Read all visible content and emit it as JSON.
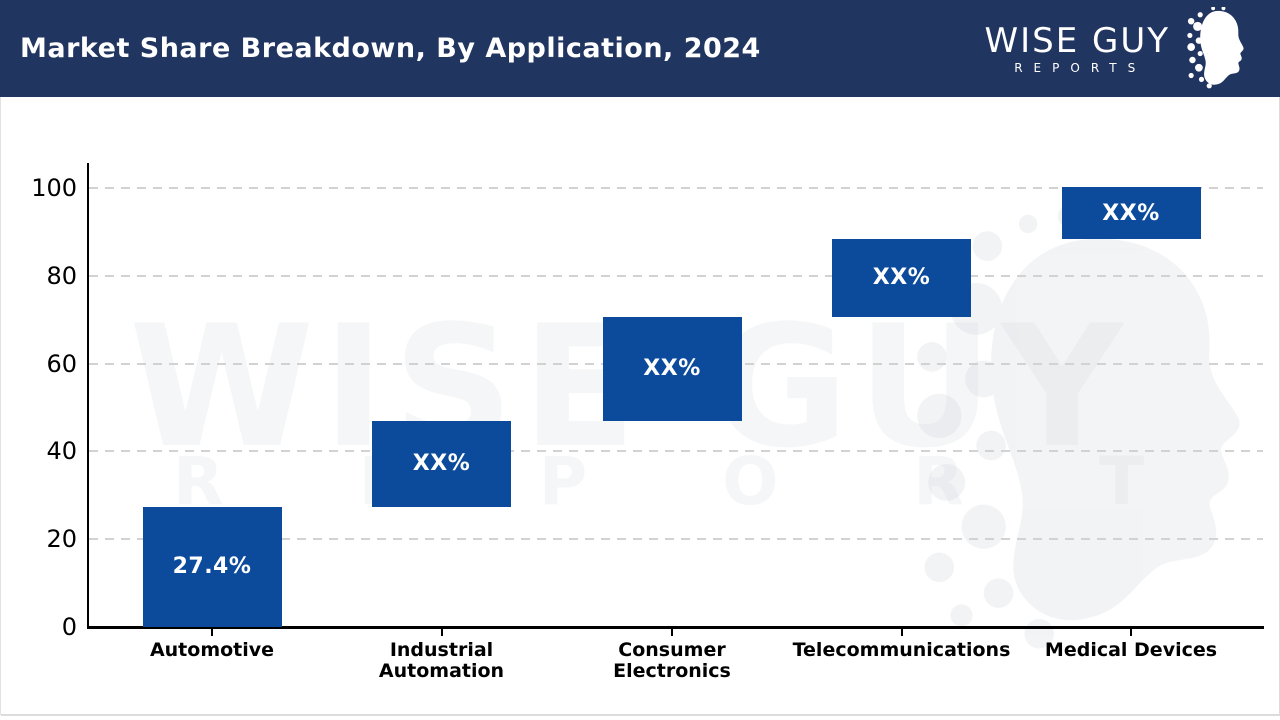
{
  "header": {
    "title": "Market Share Breakdown, By Application, 2024",
    "bg_color": "#213561",
    "logo": {
      "line1": "WISE GUY",
      "line2": "REPORTS",
      "head_icon": "dotted-face-profile"
    }
  },
  "watermark": {
    "line1": "WISE GUY",
    "line2": "R E P O R T S",
    "head_icon": "dotted-face-profile"
  },
  "chart_data": {
    "type": "bar",
    "subtype": "waterfall",
    "title": "Market Share Breakdown, By Application, 2024",
    "xlabel": "",
    "ylabel": "",
    "ylim": [
      0,
      105
    ],
    "yticks": [
      0,
      20,
      40,
      60,
      80,
      100
    ],
    "grid": "horizontal-dashed",
    "legend": "none",
    "bar_color": "#0c4a9c",
    "bar_label_color": "#ffffff",
    "categories": [
      "Automotive",
      "Industrial Automation",
      "Consumer Electronics",
      "Telecommunications",
      "Medical Devices"
    ],
    "category_label_lines": [
      "Automotive",
      "Industrial\nAutomation",
      "Consumer\nElectronics",
      "Telecommunications",
      "Medical Devices"
    ],
    "segments": [
      {
        "category": "Automotive",
        "start": 0,
        "end": 27.4,
        "value": 27.4,
        "label": "27.4%"
      },
      {
        "category": "Industrial Automation",
        "start": 27.4,
        "end": 47.0,
        "value": 19.6,
        "label": "XX%"
      },
      {
        "category": "Consumer Electronics",
        "start": 47.0,
        "end": 70.7,
        "value": 23.7,
        "label": "XX%"
      },
      {
        "category": "Telecommunications",
        "start": 70.7,
        "end": 88.4,
        "value": 17.7,
        "label": "XX%"
      },
      {
        "category": "Medical Devices",
        "start": 88.4,
        "end": 100.2,
        "value": 11.8,
        "label": "XX%"
      }
    ]
  }
}
